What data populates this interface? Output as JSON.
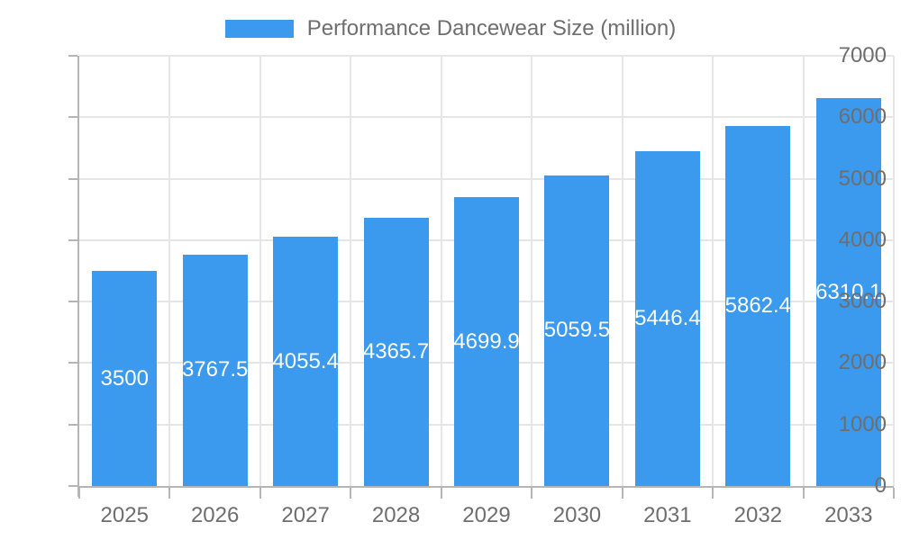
{
  "chart_data": {
    "type": "bar",
    "title": "Performance Dancewear Size (million)",
    "legend": [
      "Performance Dancewear Size (million)"
    ],
    "legend_position": "top",
    "categories": [
      "2025",
      "2026",
      "2027",
      "2028",
      "2029",
      "2030",
      "2031",
      "2032",
      "2033"
    ],
    "values": [
      3500,
      3767.5,
      4055.4,
      4365.7,
      4699.9,
      5059.5,
      5446.4,
      5862.4,
      6310.1
    ],
    "value_labels": [
      "3500",
      "3767.5",
      "4055.4",
      "4365.7",
      "4699.9",
      "5059.5",
      "5446.4",
      "5862.4",
      "6310.1"
    ],
    "xlabel": "",
    "ylabel": "",
    "ylim": [
      0,
      7000
    ],
    "y_ticks": [
      0,
      1000,
      2000,
      3000,
      4000,
      5000,
      6000,
      7000
    ],
    "grid": true,
    "colors": {
      "bar": "#3b99ee",
      "grid": "#e6e6e6",
      "axis": "#b5b5b5",
      "tick_text": "#6e6e6e",
      "bar_label_text": "#ffffff"
    }
  }
}
